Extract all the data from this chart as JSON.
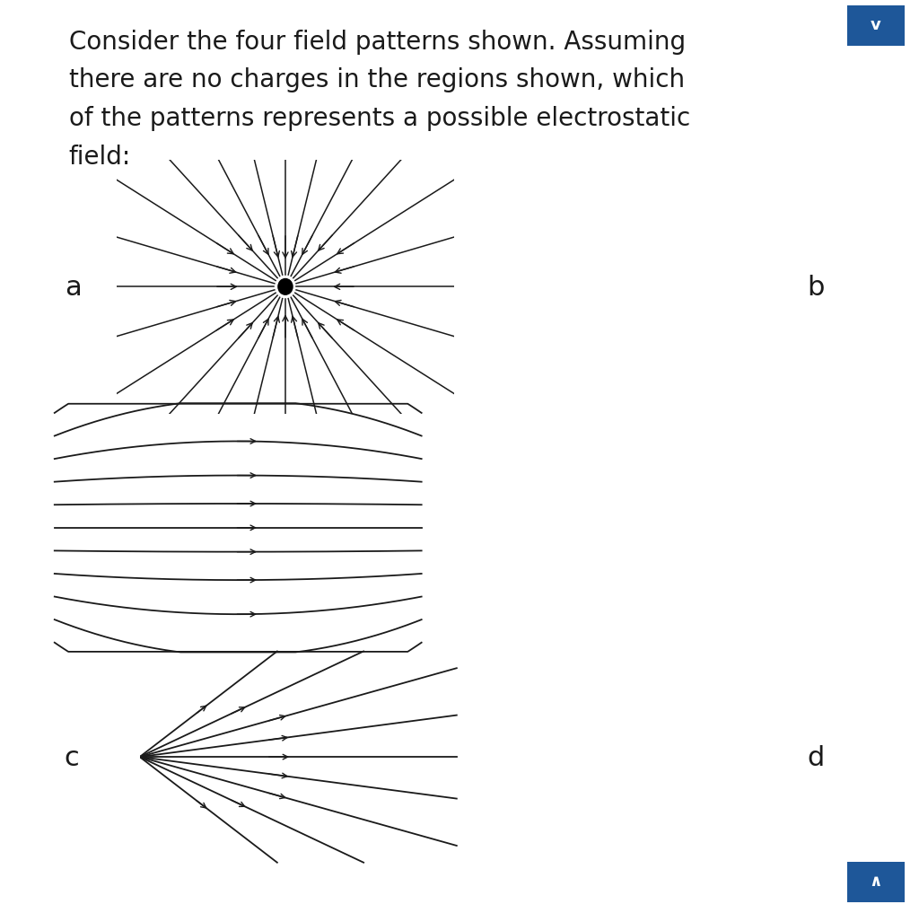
{
  "bg_color": "#ffffff",
  "panel_bg": "#e5e5e5",
  "line_color": "#1a1a1a",
  "text_color": "#1a1a1a",
  "v_btn_color": "#1e5799",
  "up_btn_color": "#1e5799",
  "title_lines": [
    "Consider the four field patterns shown. Assuming",
    "there are no charges in the regions shown, which",
    "of the patterns represents a possible electrostatic",
    "field:"
  ],
  "label_a": "a",
  "label_b": "b",
  "label_c": "c",
  "label_d": "d",
  "n_radial": 24,
  "n_barrel": 11,
  "n_fan": 9
}
